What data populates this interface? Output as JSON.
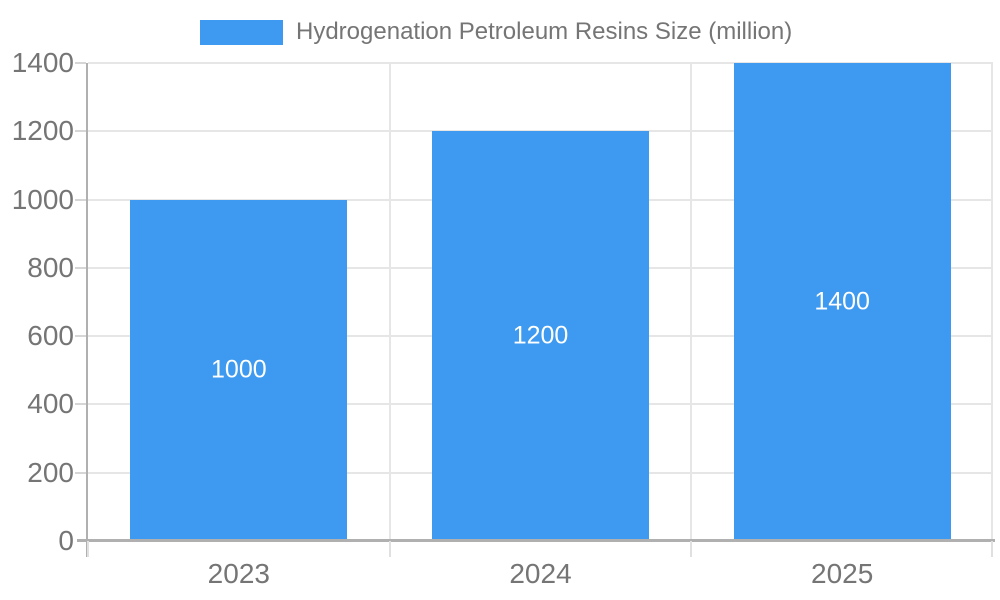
{
  "chart_data": {
    "type": "bar",
    "title": "",
    "legend": "Hydrogenation Petroleum Resins Size (million)",
    "legend_position": "top",
    "categories": [
      "2023",
      "2024",
      "2025"
    ],
    "series": [
      {
        "name": "Hydrogenation Petroleum Resins Size (million)",
        "values": [
          1000,
          1200,
          1400
        ]
      }
    ],
    "data_labels": [
      "1000",
      "1200",
      "1400"
    ],
    "xlabel": "",
    "ylabel": "",
    "ylim": [
      0,
      1400
    ],
    "yticks": [
      0,
      200,
      400,
      600,
      800,
      1000,
      1200,
      1400
    ],
    "grid": true,
    "colors": {
      "bar": "#3D9AF0",
      "data_label": "#FFFFFF",
      "axis_line": "#B0B0B0",
      "gridline": "#E6E6E6",
      "tick": "#D6D6D6",
      "tick_label": "#757575",
      "legend_text": "#757575",
      "background": "#FFFFFF"
    }
  }
}
